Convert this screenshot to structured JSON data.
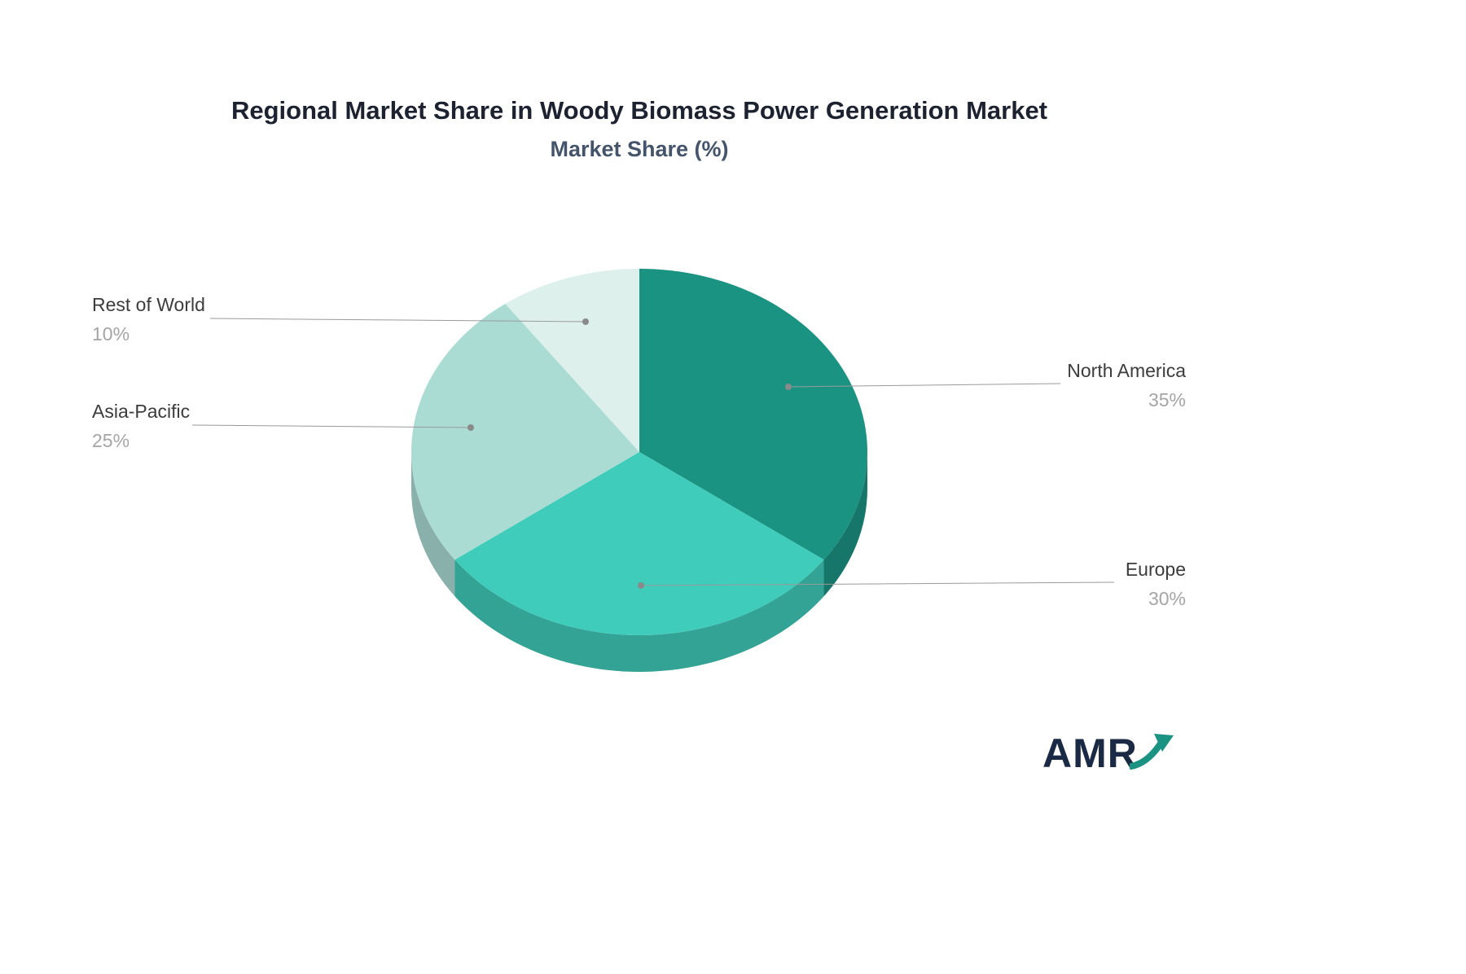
{
  "page": {
    "title": "Regional Market Share in Woody Biomass Power Generation Market",
    "subtitle": "Market Share (%)"
  },
  "logo": {
    "text": "AMR"
  },
  "chart_data": {
    "type": "pie",
    "style": "3d",
    "title": "Regional Market Share in Woody Biomass Power Generation Market",
    "subtitle": "Market Share (%)",
    "unit": "%",
    "direction": "clockwise",
    "start_angle_deg": 0,
    "legend_position": "none",
    "slices": [
      {
        "label": "North America",
        "value": 35,
        "value_label": "35%",
        "color": "#1b9383"
      },
      {
        "label": "Europe",
        "value": 30,
        "value_label": "30%",
        "color": "#3fccba"
      },
      {
        "label": "Asia-Pacific",
        "value": 25,
        "value_label": "25%",
        "color": "#abdcd4"
      },
      {
        "label": "Rest of World",
        "value": 10,
        "value_label": "10%",
        "color": "#ddf0ec"
      }
    ]
  }
}
